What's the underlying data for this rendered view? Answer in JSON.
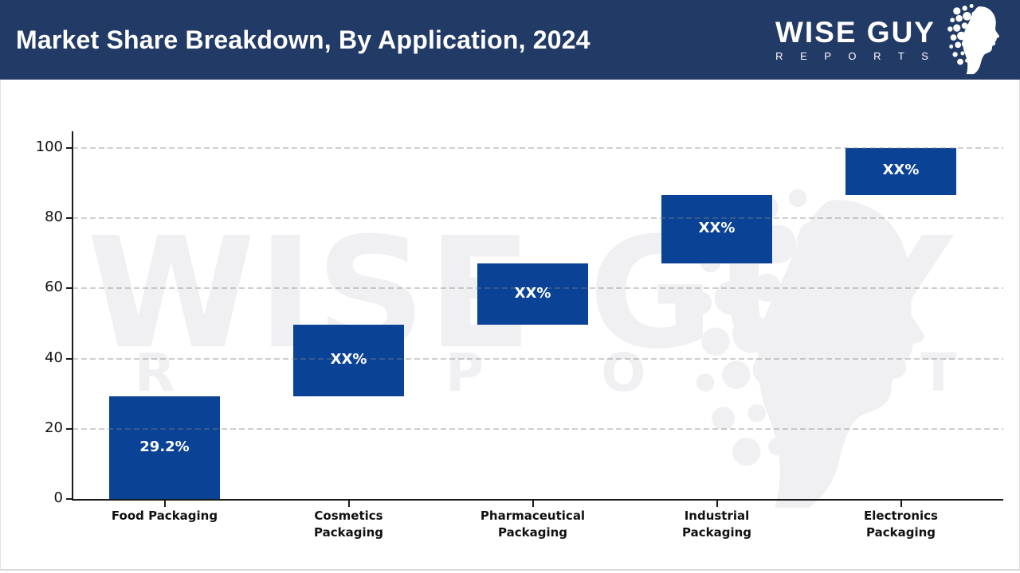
{
  "header": {
    "title": "Market Share Breakdown, By Application, 2024",
    "logo": {
      "line1": "WISE GUY",
      "line2": "R E P O R T S"
    }
  },
  "watermark": {
    "line1": "WISE GUY",
    "line2": "R E P O R T S"
  },
  "chart_data": {
    "type": "bar",
    "subtype": "waterfall",
    "title": "Market Share Breakdown, By Application, 2024",
    "categories": [
      "Food Packaging",
      "Cosmetics Packaging",
      "Pharmaceutical Packaging",
      "Industrial Packaging",
      "Electronics Packaging"
    ],
    "bars": [
      {
        "category": "Food Packaging",
        "label_lines": [
          "Food Packaging"
        ],
        "start": 0,
        "end": 29.2,
        "label": "29.2%"
      },
      {
        "category": "Cosmetics Packaging",
        "label_lines": [
          "Cosmetics",
          "Packaging"
        ],
        "start": 29.2,
        "end": 49.6,
        "label": "XX%"
      },
      {
        "category": "Pharmaceutical Packaging",
        "label_lines": [
          "Pharmaceutical",
          "Packaging"
        ],
        "start": 49.6,
        "end": 67.1,
        "label": "XX%"
      },
      {
        "category": "Industrial Packaging",
        "label_lines": [
          "Industrial",
          "Packaging"
        ],
        "start": 67.1,
        "end": 86.7,
        "label": "XX%"
      },
      {
        "category": "Electronics Packaging",
        "label_lines": [
          "Electronics",
          "Packaging"
        ],
        "start": 86.7,
        "end": 100,
        "label": "XX%"
      }
    ],
    "y_ticks": [
      0,
      20,
      40,
      60,
      80,
      100
    ],
    "ylim": [
      0,
      105
    ],
    "xlabel": "",
    "ylabel": "",
    "grid": "horizontal-dashed",
    "legend": "none",
    "bar_color": "#0a4296",
    "bar_label_color": "#ffffff"
  },
  "colors": {
    "header_bg": "#213a66",
    "bar_blue": "#0a4296",
    "watermark": "#f0f0f3",
    "axis": "#1a1a1a",
    "border": "#d9d9d9",
    "white": "#ffffff"
  }
}
